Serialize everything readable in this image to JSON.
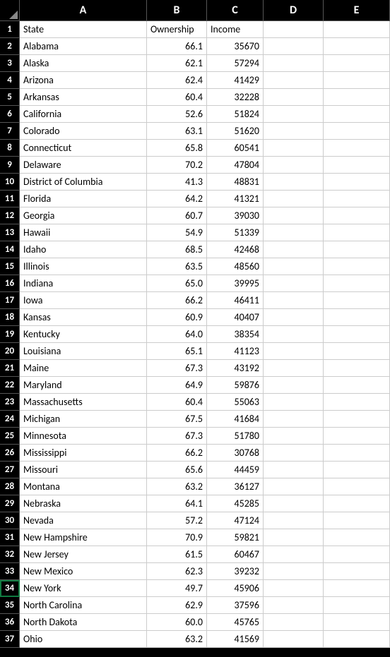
{
  "columns": [
    "A",
    "B",
    "C",
    "D",
    "E"
  ],
  "headers": {
    "state": "State",
    "ownership": "Ownership",
    "income": "Income"
  },
  "selected_row": 34,
  "rows": [
    {
      "n": 1,
      "state": "State",
      "ownership": "Ownership",
      "income": "Income",
      "is_header": true
    },
    {
      "n": 2,
      "state": "Alabama",
      "ownership": "66.1",
      "income": "35670"
    },
    {
      "n": 3,
      "state": "Alaska",
      "ownership": "62.1",
      "income": "57294"
    },
    {
      "n": 4,
      "state": "Arizona",
      "ownership": "62.4",
      "income": "41429"
    },
    {
      "n": 5,
      "state": "Arkansas",
      "ownership": "60.4",
      "income": "32228"
    },
    {
      "n": 6,
      "state": "California",
      "ownership": "52.6",
      "income": "51824"
    },
    {
      "n": 7,
      "state": "Colorado",
      "ownership": "63.1",
      "income": "51620"
    },
    {
      "n": 8,
      "state": "Connecticut",
      "ownership": "65.8",
      "income": "60541"
    },
    {
      "n": 9,
      "state": "Delaware",
      "ownership": "70.2",
      "income": "47804"
    },
    {
      "n": 10,
      "state": "District of Columbia",
      "ownership": "41.3",
      "income": "48831"
    },
    {
      "n": 11,
      "state": "Florida",
      "ownership": "64.2",
      "income": "41321"
    },
    {
      "n": 12,
      "state": "Georgia",
      "ownership": "60.7",
      "income": "39030"
    },
    {
      "n": 13,
      "state": "Hawaii",
      "ownership": "54.9",
      "income": "51339"
    },
    {
      "n": 14,
      "state": "Idaho",
      "ownership": "68.5",
      "income": "42468"
    },
    {
      "n": 15,
      "state": "Illinois",
      "ownership": "63.5",
      "income": "48560"
    },
    {
      "n": 16,
      "state": "Indiana",
      "ownership": "65.0",
      "income": "39995"
    },
    {
      "n": 17,
      "state": "Iowa",
      "ownership": "66.2",
      "income": "46411"
    },
    {
      "n": 18,
      "state": "Kansas",
      "ownership": "60.9",
      "income": "40407"
    },
    {
      "n": 19,
      "state": "Kentucky",
      "ownership": "64.0",
      "income": "38354"
    },
    {
      "n": 20,
      "state": "Louisiana",
      "ownership": "65.1",
      "income": "41123"
    },
    {
      "n": 21,
      "state": "Maine",
      "ownership": "67.3",
      "income": "43192"
    },
    {
      "n": 22,
      "state": "Maryland",
      "ownership": "64.9",
      "income": "59876"
    },
    {
      "n": 23,
      "state": "Massachusetts",
      "ownership": "60.4",
      "income": "55063"
    },
    {
      "n": 24,
      "state": "Michigan",
      "ownership": "67.5",
      "income": "41684"
    },
    {
      "n": 25,
      "state": "Minnesota",
      "ownership": "67.3",
      "income": "51780"
    },
    {
      "n": 26,
      "state": "Mississippi",
      "ownership": "66.2",
      "income": "30768"
    },
    {
      "n": 27,
      "state": "Missouri",
      "ownership": "65.6",
      "income": "44459"
    },
    {
      "n": 28,
      "state": "Montana",
      "ownership": "63.2",
      "income": "36127"
    },
    {
      "n": 29,
      "state": "Nebraska",
      "ownership": "64.1",
      "income": "45285"
    },
    {
      "n": 30,
      "state": "Nevada",
      "ownership": "57.2",
      "income": "47124"
    },
    {
      "n": 31,
      "state": "New Hampshire",
      "ownership": "70.9",
      "income": "59821"
    },
    {
      "n": 32,
      "state": "New Jersey",
      "ownership": "61.5",
      "income": "60467"
    },
    {
      "n": 33,
      "state": "New Mexico",
      "ownership": "62.3",
      "income": "39232"
    },
    {
      "n": 34,
      "state": "New York",
      "ownership": "49.7",
      "income": "45906"
    },
    {
      "n": 35,
      "state": "North Carolina",
      "ownership": "62.9",
      "income": "37596"
    },
    {
      "n": 36,
      "state": "North Dakota",
      "ownership": "60.0",
      "income": "45765"
    },
    {
      "n": 37,
      "state": "Ohio",
      "ownership": "63.2",
      "income": "41569"
    }
  ]
}
